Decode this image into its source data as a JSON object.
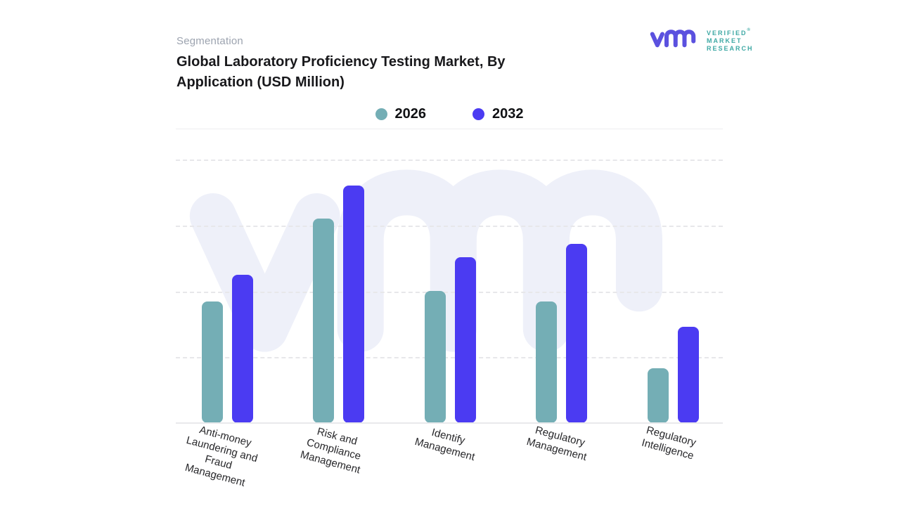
{
  "header": {
    "eyebrow": "Segmentation",
    "title_line1": "Global Laboratory Proficiency Testing Market, By",
    "title_line2": "Application (USD Million)"
  },
  "logo": {
    "name": "verified-market-research-logo",
    "lines": [
      "VERIFIED",
      "MARKET",
      "RESEARCH"
    ],
    "registered_mark": "®",
    "monogram_color": "#5b51df",
    "text_color": "#3fa9a5"
  },
  "legend": {
    "items": [
      {
        "label": "2026",
        "color": "#74aeb5"
      },
      {
        "label": "2032",
        "color": "#4b3bf2"
      }
    ]
  },
  "chart_data": {
    "type": "bar",
    "title": "Global Laboratory Proficiency Testing Market, By Application (USD Million)",
    "subtitle_label": "Segmentation",
    "categories": [
      "Anti-money Laundering and Fraud Management",
      "Risk and Compliance Management",
      "Identify Management",
      "Regulatory Management",
      "Regulatory Intelligence"
    ],
    "series": [
      {
        "name": "2026",
        "color": "#74aeb5",
        "values": [
          1.85,
          3.1,
          2.0,
          1.85,
          0.83
        ]
      },
      {
        "name": "2032",
        "color": "#4b3bf2",
        "values": [
          2.25,
          3.6,
          2.52,
          2.72,
          1.46
        ]
      }
    ],
    "ylabel": "",
    "ylim": [
      0,
      4
    ],
    "y_axis_labels_visible": false,
    "value_note": "relative heights in gridline units; no numeric axis labels shown",
    "grid": "horizontal dashed",
    "legend_position": "top-center",
    "x_label_rotation_deg": 15,
    "watermark": "vmr-monogram"
  },
  "colors": {
    "background": "#ffffff",
    "gridline": "#e7e7ea",
    "watermark": "#eef0f9",
    "title_text": "#18181b",
    "eyebrow_text": "#9ca3af",
    "axis_label_text": "#27272a"
  }
}
